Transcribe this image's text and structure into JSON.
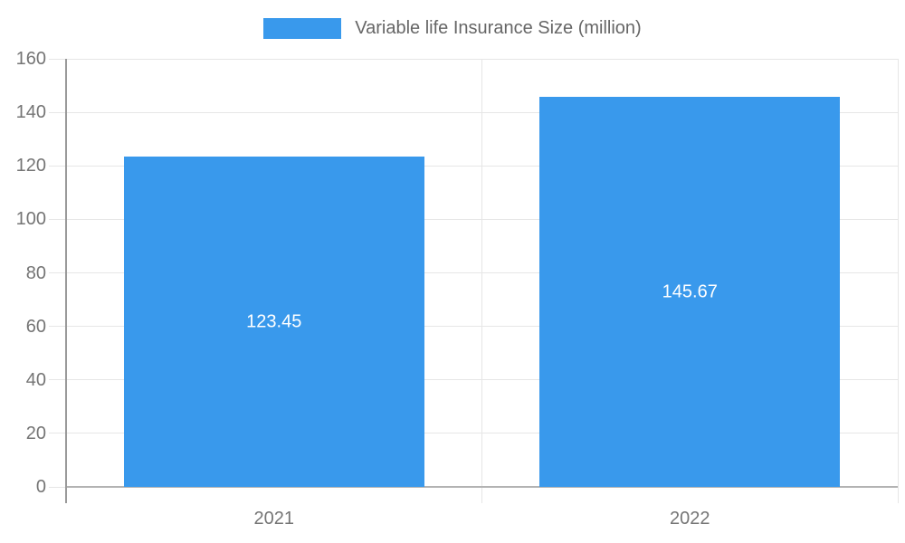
{
  "legend": {
    "label": "Variable life Insurance Size (million)"
  },
  "colors": {
    "bar": "#3999ec",
    "grid": "#e6e6e6",
    "y_axis": "#9a9a9a",
    "x_axis": "#b3b3b3",
    "tick_text": "#757575",
    "legend_text": "#666666",
    "bar_label": "#ffffff",
    "background": "#ffffff"
  },
  "chart_data": {
    "type": "bar",
    "title": "Variable life Insurance Size (million)",
    "categories": [
      "2021",
      "2022"
    ],
    "series": [
      {
        "name": "Variable life Insurance Size (million)",
        "values": [
          123.45,
          145.67
        ]
      }
    ],
    "value_labels": [
      "123.45",
      "145.67"
    ],
    "xlabel": "",
    "ylabel": "",
    "ylim": [
      0,
      160
    ],
    "yticks": [
      0,
      20,
      40,
      60,
      80,
      100,
      120,
      140,
      160
    ],
    "grid": true,
    "legend_position": "top",
    "value_labels_position": "inside-center"
  }
}
